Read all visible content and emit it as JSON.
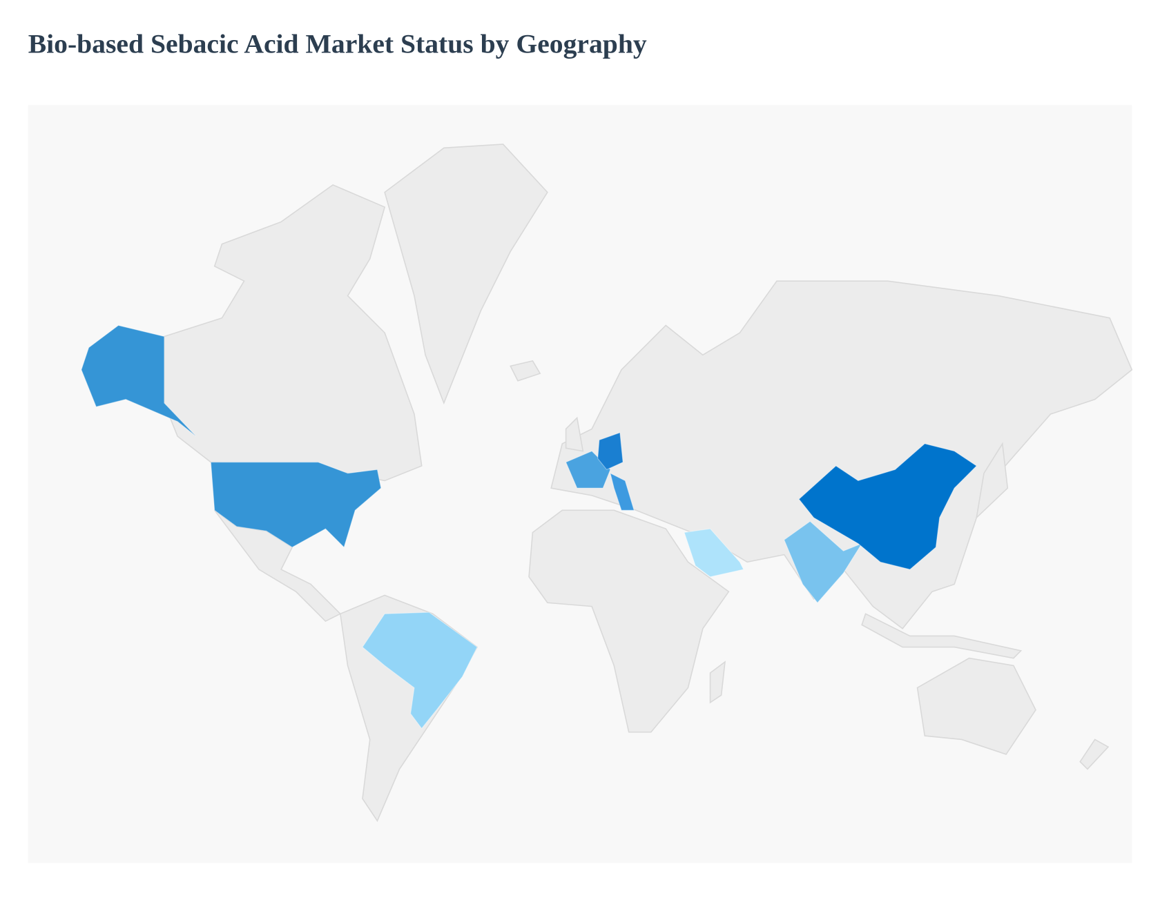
{
  "title": "Bio-based Sebacic Acid Market Status by Geography"
}
